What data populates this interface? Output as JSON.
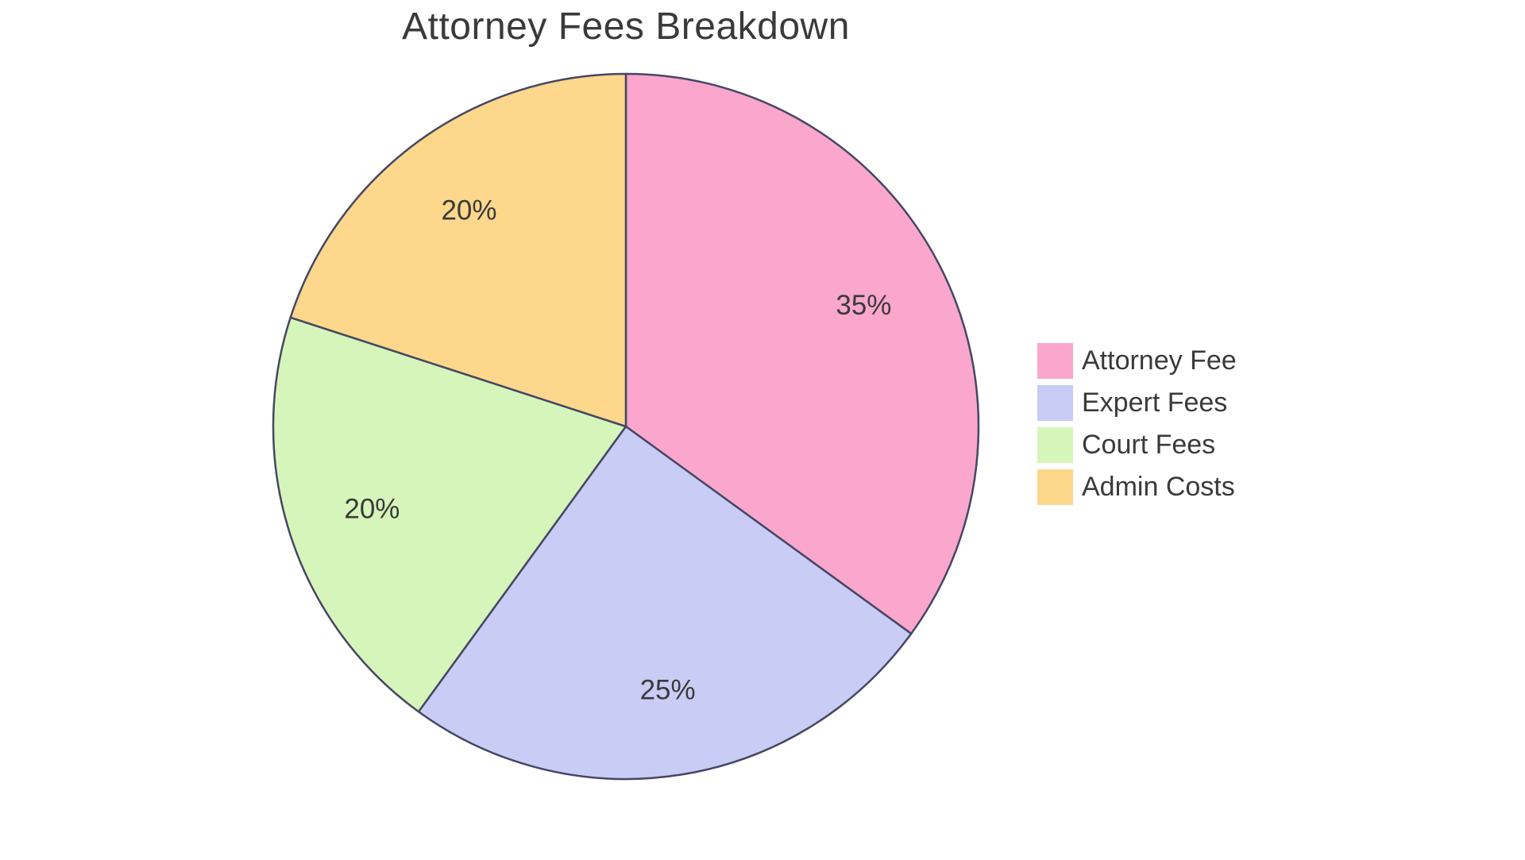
{
  "title": "Attorney Fees Breakdown",
  "chart_data": {
    "type": "pie",
    "title": "Attorney Fees Breakdown",
    "labels": [
      "Attorney Fee",
      "Expert Fees",
      "Court Fees",
      "Admin Costs"
    ],
    "values": [
      35,
      25,
      20,
      20
    ],
    "percent_labels": [
      "35%",
      "25%",
      "20%",
      "20%"
    ],
    "colors": [
      "#FBA6CD",
      "#C9CCF4",
      "#D6F5BA",
      "#FCD78C"
    ],
    "slice_edge_color": "#454764",
    "label_text_color": "#3A3A3A",
    "start_angle": "12-o-clock",
    "direction": "clockwise",
    "legend_position": "right",
    "legend_order": [
      "Attorney Fee",
      "Expert Fees",
      "Court Fees",
      "Admin Costs"
    ]
  }
}
